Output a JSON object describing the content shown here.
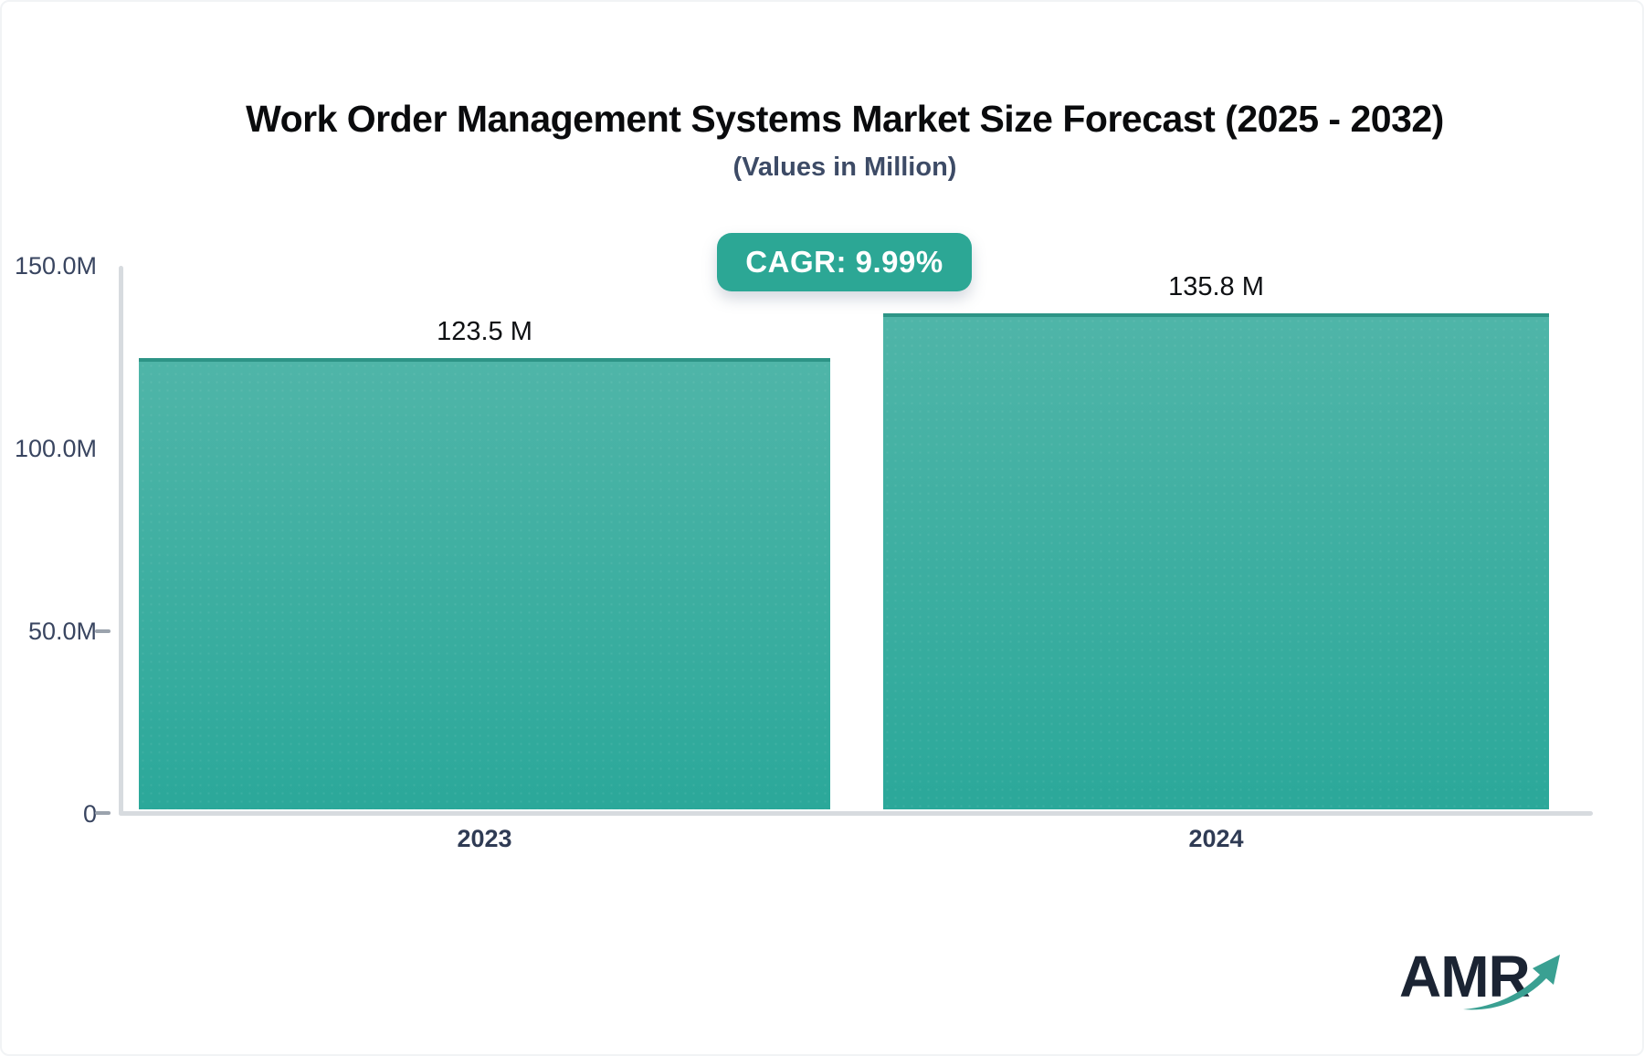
{
  "header": {
    "title": "Work Order Management Systems Market Size Forecast (2025 - 2032)",
    "subtitle": "(Values in Million)"
  },
  "badge": {
    "label": "CAGR: 9.99%"
  },
  "chart_data": {
    "type": "bar",
    "categories": [
      "2023",
      "2024"
    ],
    "values": [
      123.5,
      135.8
    ],
    "value_labels": [
      "123.5 M",
      "135.8 M"
    ],
    "series_unit": "Million",
    "ylim": [
      0,
      150
    ],
    "ylabel_ticks": [
      {
        "label": "150.0M",
        "value": 150
      },
      {
        "label": "100.0M",
        "value": 100
      },
      {
        "label": "50.0M",
        "value": 50
      },
      {
        "label": "0",
        "value": 0
      }
    ],
    "grid": false,
    "legend": false,
    "title": "Work Order Management Systems Market Size Forecast (2025 - 2032)",
    "subtitle": "(Values in Million)",
    "annotation": "CAGR: 9.99%"
  },
  "logo": {
    "text": "AMR"
  },
  "colors": {
    "accent_teal": "#2ca795",
    "bar_top": "#4fb5a8",
    "bar_bottom": "#2ba89a",
    "bar_border": "#2d9486",
    "axis_gray": "#d7dbdf",
    "label_navy": "#394560",
    "logo_navy": "#1b2433",
    "logo_arrow_teal": "#3aa092"
  }
}
